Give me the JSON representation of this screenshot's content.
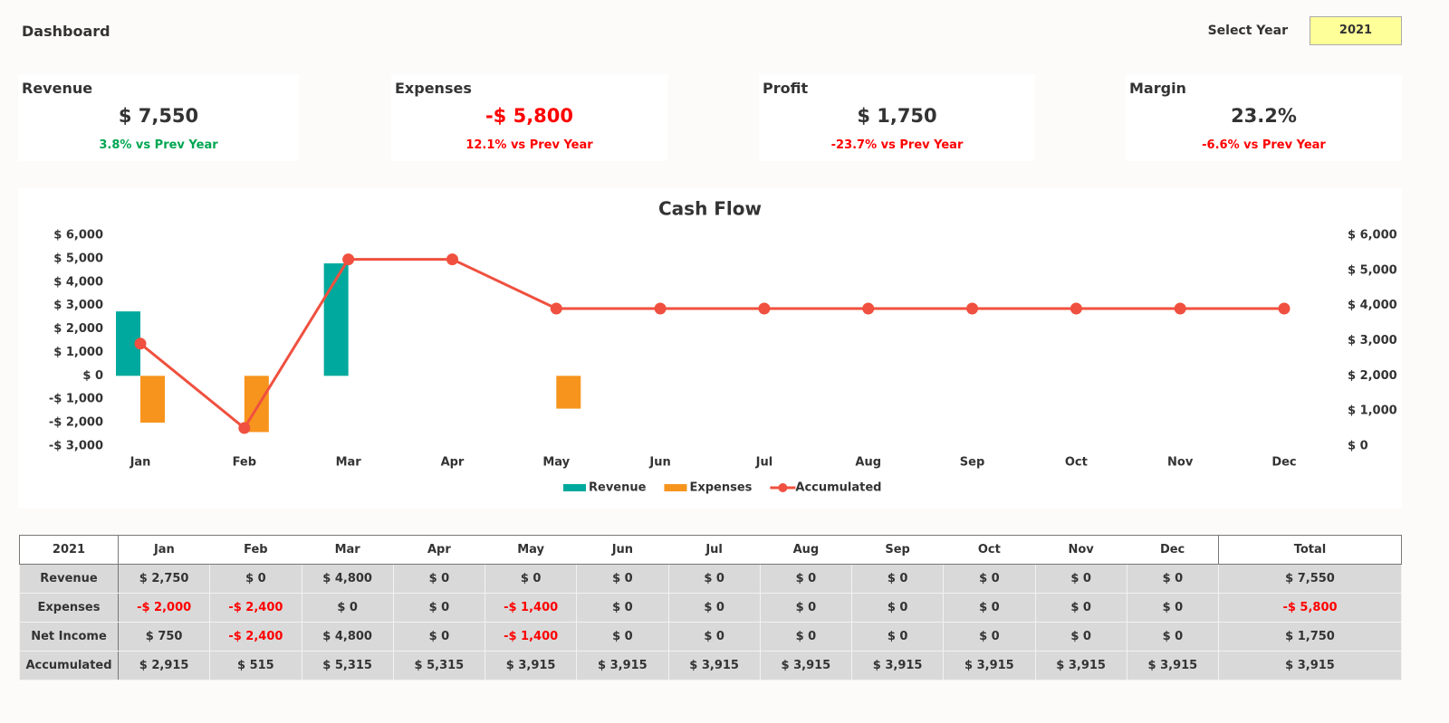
{
  "header": {
    "title": "Dashboard",
    "select_label": "Select Year",
    "year": "2021"
  },
  "kpis": [
    {
      "label": "Revenue",
      "value": "$ 7,550",
      "change": "3.8% vs Prev Year",
      "value_color": "#333333",
      "change_color": "#00a651"
    },
    {
      "label": "Expenses",
      "value": "-$ 5,800",
      "change": "12.1% vs Prev Year",
      "value_color": "#ff0000",
      "change_color": "#ff0000"
    },
    {
      "label": "Profit",
      "value": "$ 1,750",
      "change": "-23.7% vs Prev Year",
      "value_color": "#333333",
      "change_color": "#ff0000"
    },
    {
      "label": "Margin",
      "value": "23.2%",
      "change": "-6.6% vs Prev Year",
      "value_color": "#333333",
      "change_color": "#ff0000"
    }
  ],
  "chart_data": {
    "type": "combo",
    "title": "Cash Flow",
    "categories": [
      "Jan",
      "Feb",
      "Mar",
      "Apr",
      "May",
      "Jun",
      "Jul",
      "Aug",
      "Sep",
      "Oct",
      "Nov",
      "Dec"
    ],
    "series": [
      {
        "name": "Revenue",
        "type": "bar",
        "color": "#00a99d",
        "values": [
          2750,
          0,
          4800,
          0,
          0,
          0,
          0,
          0,
          0,
          0,
          0,
          0
        ]
      },
      {
        "name": "Expenses",
        "type": "bar",
        "color": "#f7941d",
        "values": [
          -2000,
          -2400,
          0,
          0,
          -1400,
          0,
          0,
          0,
          0,
          0,
          0,
          0
        ]
      },
      {
        "name": "Accumulated",
        "type": "line",
        "axis": "y2",
        "color": "#f0503f",
        "values": [
          2915,
          515,
          5315,
          5315,
          3915,
          3915,
          3915,
          3915,
          3915,
          3915,
          3915,
          3915
        ]
      }
    ],
    "ylim": [
      -3000,
      6000
    ],
    "yticks": [
      {
        "value": -3000,
        "label": "-$ 3,000"
      },
      {
        "value": -2000,
        "label": "-$ 2,000"
      },
      {
        "value": -1000,
        "label": "-$ 1,000"
      },
      {
        "value": 0,
        "label": "$ 0"
      },
      {
        "value": 1000,
        "label": "$ 1,000"
      },
      {
        "value": 2000,
        "label": "$ 2,000"
      },
      {
        "value": 3000,
        "label": "$ 3,000"
      },
      {
        "value": 4000,
        "label": "$ 4,000"
      },
      {
        "value": 5000,
        "label": "$ 5,000"
      },
      {
        "value": 6000,
        "label": "$ 6,000"
      }
    ],
    "y2lim": [
      0,
      6000
    ],
    "y2ticks": [
      {
        "value": 0,
        "label": "$ 0"
      },
      {
        "value": 1000,
        "label": "$ 1,000"
      },
      {
        "value": 2000,
        "label": "$ 2,000"
      },
      {
        "value": 3000,
        "label": "$ 3,000"
      },
      {
        "value": 4000,
        "label": "$ 4,000"
      },
      {
        "value": 5000,
        "label": "$ 5,000"
      },
      {
        "value": 6000,
        "label": "$ 6,000"
      }
    ],
    "grid": false,
    "legend": "bottom"
  },
  "table": {
    "header": [
      "2021",
      "Jan",
      "Feb",
      "Mar",
      "Apr",
      "May",
      "Jun",
      "Jul",
      "Aug",
      "Sep",
      "Oct",
      "Nov",
      "Dec",
      "Total"
    ],
    "rows": [
      [
        "Revenue",
        "$ 2,750",
        "$ 0",
        "$ 4,800",
        "$ 0",
        "$ 0",
        "$ 0",
        "$ 0",
        "$ 0",
        "$ 0",
        "$ 0",
        "$ 0",
        "$ 0",
        "$ 7,550"
      ],
      [
        "Expenses",
        "-$ 2,000",
        "-$ 2,400",
        "$ 0",
        "$ 0",
        "-$ 1,400",
        "$ 0",
        "$ 0",
        "$ 0",
        "$ 0",
        "$ 0",
        "$ 0",
        "$ 0",
        "-$ 5,800"
      ],
      [
        "Net Income",
        "$ 750",
        "-$ 2,400",
        "$ 4,800",
        "$ 0",
        "-$ 1,400",
        "$ 0",
        "$ 0",
        "$ 0",
        "$ 0",
        "$ 0",
        "$ 0",
        "$ 0",
        "$ 1,750"
      ],
      [
        "Accumulated",
        "$ 2,915",
        "$ 515",
        "$ 5,315",
        "$ 5,315",
        "$ 3,915",
        "$ 3,915",
        "$ 3,915",
        "$ 3,915",
        "$ 3,915",
        "$ 3,915",
        "$ 3,915",
        "$ 3,915",
        "$ 3,915"
      ]
    ]
  }
}
